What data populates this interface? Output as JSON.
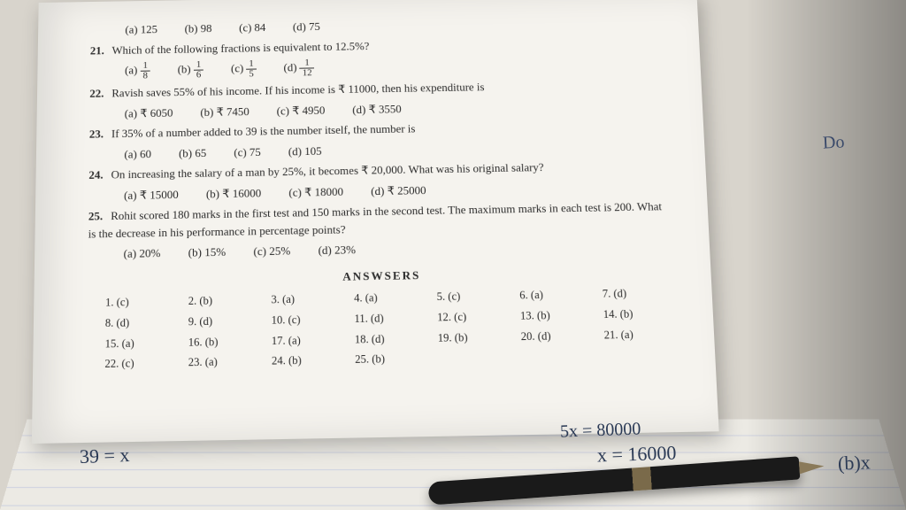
{
  "q20": {
    "prev_opts": {
      "a": "125",
      "b": "98",
      "c": "84",
      "d": "75"
    }
  },
  "q21": {
    "num": "21.",
    "text": "Which of the following fractions is equivalent to 12.5%?",
    "a_n": "1",
    "a_d": "8",
    "b_n": "1",
    "b_d": "6",
    "c_n": "1",
    "c_d": "5",
    "d_n": "1",
    "d_d": "12"
  },
  "q22": {
    "num": "22.",
    "text": "Ravish saves 55% of his income. If his income is ₹ 11000, then his expenditure is",
    "a": "₹ 6050",
    "b": "₹ 7450",
    "c": "₹ 4950",
    "d": "₹ 3550"
  },
  "q23": {
    "num": "23.",
    "text": "If 35% of a number added to 39 is the number itself, the number is",
    "a": "60",
    "b": "65",
    "c": "75",
    "d": "105"
  },
  "q24": {
    "num": "24.",
    "text": "On increasing the salary of a man by 25%, it becomes ₹ 20,000. What was his original salary?",
    "a": "₹ 15000",
    "b": "₹ 16000",
    "c": "₹ 18000",
    "d": "₹ 25000"
  },
  "q25": {
    "num": "25.",
    "text": "Rohit scored 180 marks in the first test and 150 marks in the second test. The maximum marks in each test is 200. What is the decrease in his performance in percentage points?",
    "a": "20%",
    "b": "15%",
    "c": "25%",
    "d": "23%"
  },
  "answers_title": "ANSWSERS",
  "answers": [
    "1. (c)",
    "2. (b)",
    "3. (a)",
    "4. (a)",
    "5. (c)",
    "6. (a)",
    "7. (d)",
    "8. (d)",
    "9. (d)",
    "10. (c)",
    "11. (d)",
    "12. (c)",
    "13. (b)",
    "14. (b)",
    "15. (a)",
    "16. (b)",
    "17. (a)",
    "18. (d)",
    "19. (b)",
    "20. (d)",
    "21. (a)",
    "22. (c)",
    "23. (a)",
    "24. (b)",
    "25. (b)"
  ],
  "hand": {
    "eq1": "39 = x",
    "eq2": "5x = 80000",
    "eq3": "x = 16000",
    "eq4": "16000",
    "side": "(b)x",
    "margin": "Do"
  }
}
